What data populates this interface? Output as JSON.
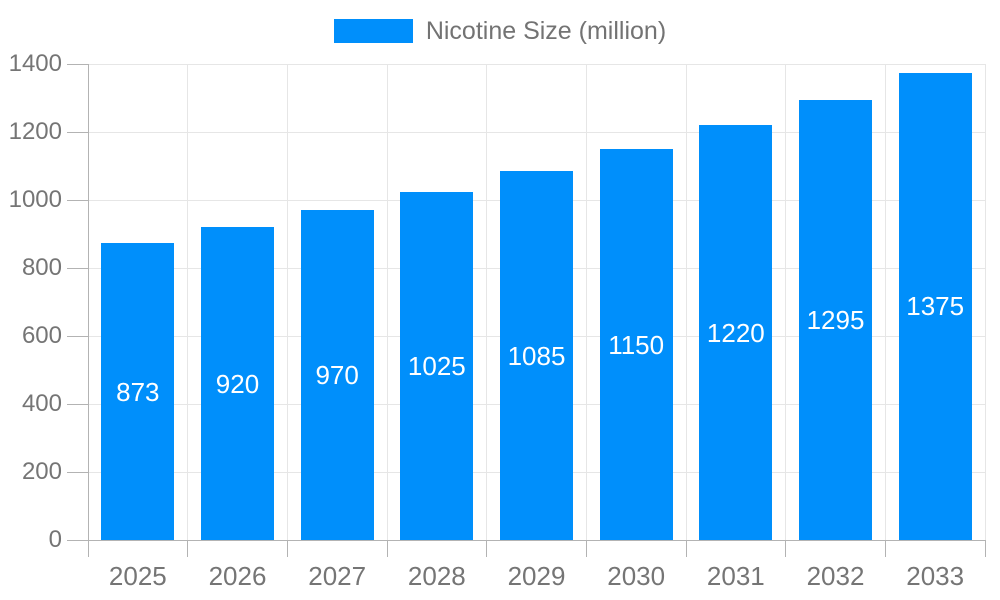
{
  "chart_data": {
    "type": "bar",
    "categories": [
      "2025",
      "2026",
      "2027",
      "2028",
      "2029",
      "2030",
      "2031",
      "2032",
      "2033"
    ],
    "series": [
      {
        "name": "Nicotine Size (million)",
        "values": [
          873,
          920,
          970,
          1025,
          1085,
          1150,
          1220,
          1295,
          1375
        ]
      }
    ],
    "xlabel": "",
    "ylabel": "",
    "ylim": [
      0,
      1400
    ],
    "y_ticks": [
      0,
      200,
      400,
      600,
      800,
      1000,
      1200,
      1400
    ],
    "grid": true,
    "legend_position": "top",
    "value_label_position": "inside-center",
    "colors": {
      "bar": "#008FFB",
      "grid": "#e6e6e6",
      "axis": "#b3b3b3",
      "axis_text": "#757575",
      "legend_text": "#737373",
      "value_label": "#ffffff",
      "background": "#ffffff"
    }
  }
}
